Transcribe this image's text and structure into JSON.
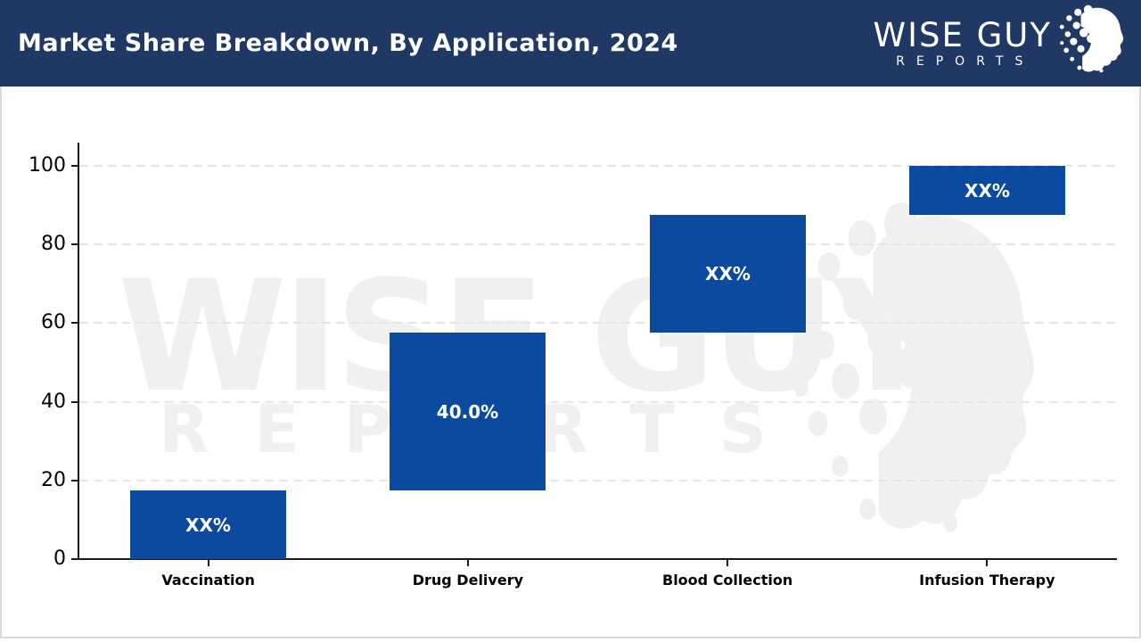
{
  "header": {
    "title": "Market Share Breakdown, By Application, 2024",
    "logo": {
      "name": "WISE GUY",
      "subtitle": "REPORTS"
    }
  },
  "watermark": {
    "line1": "WISE GUY",
    "line2": "REPORTS"
  },
  "chart_data": {
    "type": "bar",
    "subtype": "waterfall",
    "title": "Market Share Breakdown, By Application, 2024",
    "categories": [
      "Vaccination",
      "Drug Delivery",
      "Blood Collection",
      "Infusion Therapy"
    ],
    "segments": [
      {
        "category": "Vaccination",
        "start": 0,
        "end": 17.5,
        "value": 17.5,
        "label": "XX%"
      },
      {
        "category": "Drug Delivery",
        "start": 17.5,
        "end": 57.5,
        "value": 40.0,
        "label": "40.0%"
      },
      {
        "category": "Blood Collection",
        "start": 57.5,
        "end": 87.5,
        "value": 30.0,
        "label": "XX%"
      },
      {
        "category": "Infusion Therapy",
        "start": 87.5,
        "end": 100,
        "value": 12.5,
        "label": "XX%"
      }
    ],
    "xlabel": "",
    "ylabel": "",
    "yticks": [
      0,
      20,
      40,
      60,
      80,
      100
    ],
    "ylim": [
      0,
      105
    ],
    "grid": "horizontal-dashed",
    "legend": "none"
  },
  "colors": {
    "header_bg": "#203864",
    "bar": "#0b4a9f",
    "bar_label": "#ffffff",
    "grid": "#e4e4e4",
    "axis": "#1a1a1a",
    "watermark": "#f0f0f0",
    "frame_line": "#d9d9d9"
  }
}
